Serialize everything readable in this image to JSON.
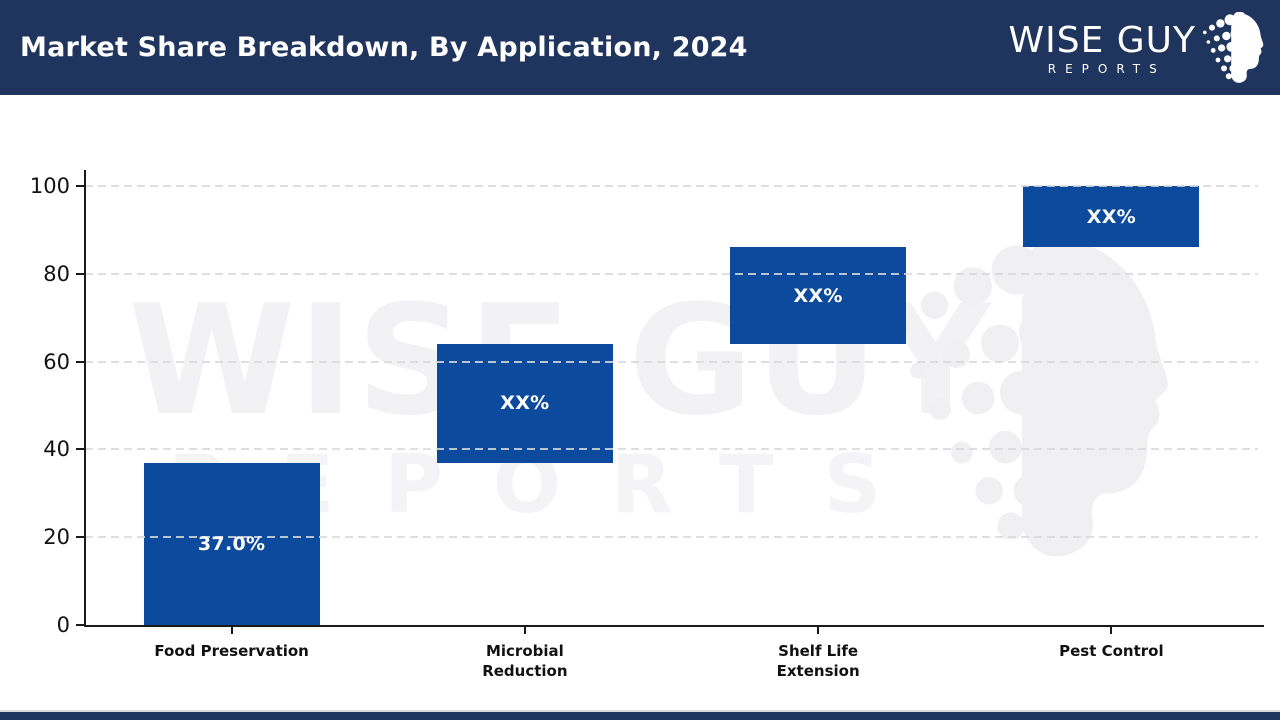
{
  "header": {
    "title": "Market Share Breakdown, By Application, 2024",
    "logo": {
      "line1": "WISE GUY",
      "line2": "REPORTS"
    }
  },
  "watermark": {
    "line1": "WISE GUY",
    "line2": "REPORTS"
  },
  "colors": {
    "header_bg": "#1f355d",
    "bar": "#0c4a9d",
    "gridline": "#d9d9d9",
    "axis": "#1a1a1a",
    "label_on_bar": "#ffffff",
    "watermark": "#f2f2f4"
  },
  "chart_data": {
    "type": "bar",
    "subtype": "waterfall",
    "title": "Market Share Breakdown, By Application, 2024",
    "categories": [
      "Food Preservation",
      "Microbial\nReduction",
      "Shelf Life\nExtension",
      "Pest Control"
    ],
    "bars": [
      {
        "category": "Food Preservation",
        "start": 0,
        "end": 37,
        "label": "37.0%"
      },
      {
        "category": "Microbial Reduction",
        "start": 37,
        "end": 64,
        "label": "XX%"
      },
      {
        "category": "Shelf Life Extension",
        "start": 64,
        "end": 86,
        "label": "XX%"
      },
      {
        "category": "Pest Control",
        "start": 86,
        "end": 100,
        "label": "XX%"
      }
    ],
    "xlabel": "",
    "ylabel": "",
    "ylim": [
      0,
      100
    ],
    "yticks": [
      0,
      20,
      40,
      60,
      80,
      100
    ],
    "grid": "dashed horizontal, drawn over bars",
    "legend": "none",
    "bar_color": "#0c4a9d"
  }
}
